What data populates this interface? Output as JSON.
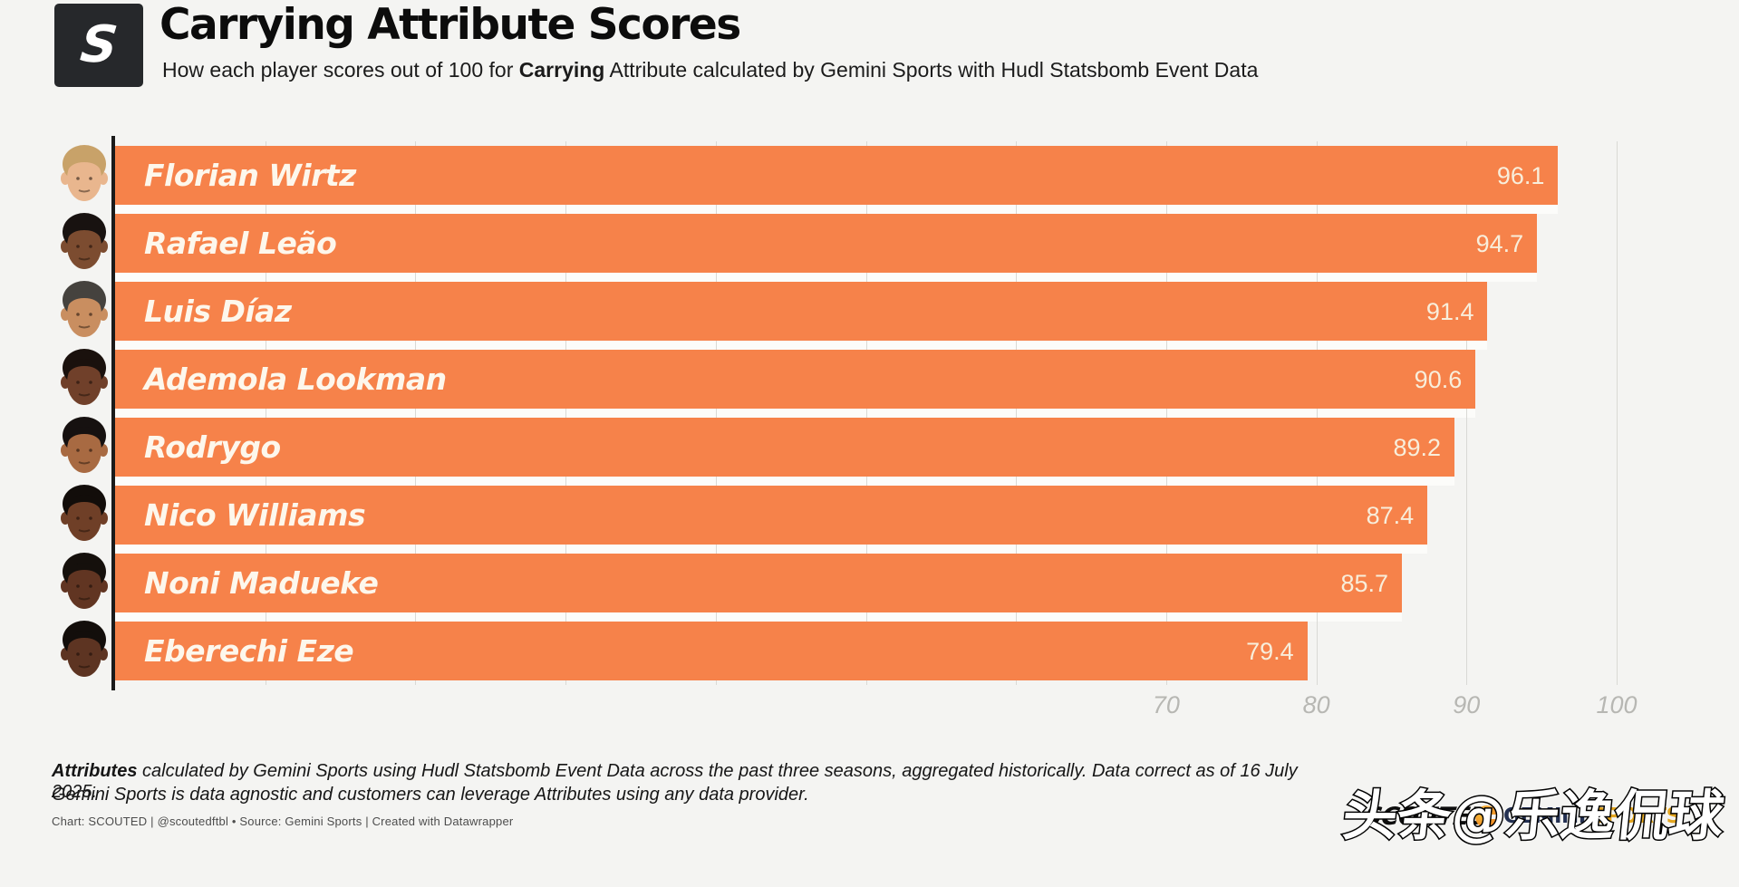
{
  "header": {
    "logo_letter": "S",
    "title": "Carrying Attribute Scores",
    "subtitle_prefix": "How each player scores out of 100 for ",
    "subtitle_bold": "Carrying",
    "subtitle_suffix": " Attribute calculated by Gemini Sports with Hudl Statsbomb Event Data"
  },
  "chart_data": {
    "type": "bar",
    "orientation": "horizontal",
    "title": "Carrying Attribute Scores",
    "xlim": [
      0,
      100
    ],
    "x_ticks": [
      70,
      80,
      90,
      100
    ],
    "grid_interval": 10,
    "grid": "on",
    "bar_color": "#f6824a",
    "categories": [
      "Florian Wirtz",
      "Rafael Leão",
      "Luis Díaz",
      "Ademola Lookman",
      "Rodrygo",
      "Nico Williams",
      "Noni Madueke",
      "Eberechi Eze"
    ],
    "values": [
      96.1,
      94.7,
      91.4,
      90.6,
      89.2,
      87.4,
      85.7,
      79.4
    ],
    "players": [
      {
        "name": "Florian Wirtz",
        "value": 96.1,
        "skin": "#e9b68e",
        "hair": "#c8a269"
      },
      {
        "name": "Rafael Leão",
        "value": 94.7,
        "skin": "#7c4c30",
        "hair": "#181210"
      },
      {
        "name": "Luis Díaz",
        "value": 91.4,
        "skin": "#c98e60",
        "hair": "#45423e"
      },
      {
        "name": "Ademola Lookman",
        "value": 90.6,
        "skin": "#70402a",
        "hair": "#1a110d"
      },
      {
        "name": "Rodrygo",
        "value": 89.2,
        "skin": "#a86a42",
        "hair": "#161110"
      },
      {
        "name": "Nico Williams",
        "value": 87.4,
        "skin": "#6f3f27",
        "hair": "#120d0a"
      },
      {
        "name": "Noni Madueke",
        "value": 85.7,
        "skin": "#613522",
        "hair": "#15100c"
      },
      {
        "name": "Eberechi Eze",
        "value": 79.4,
        "skin": "#5d3422",
        "hair": "#130e0b"
      }
    ]
  },
  "footer": {
    "note_bold": "Attributes",
    "note_rest": " calculated by Gemini Sports using Hudl Statsbomb Event Data across the past three seasons, aggregated historically. Data correct as of 16 July 2025.",
    "note_line2": "Gemini Sports is data agnostic and customers can leverage Attributes using any data provider.",
    "credit": "Chart: SCOUTED | @scoutedftbl • Source: Gemini Sports | Created with Datawrapper"
  },
  "brands": {
    "scouted_wordmark": "SCOUTED",
    "gemini_word1": "GEMINI",
    "gemini_word2": "SPORTS",
    "gemini_navy": "#233052",
    "gemini_gold": "#e3a51e"
  },
  "watermark": "头条@乐逸侃球"
}
